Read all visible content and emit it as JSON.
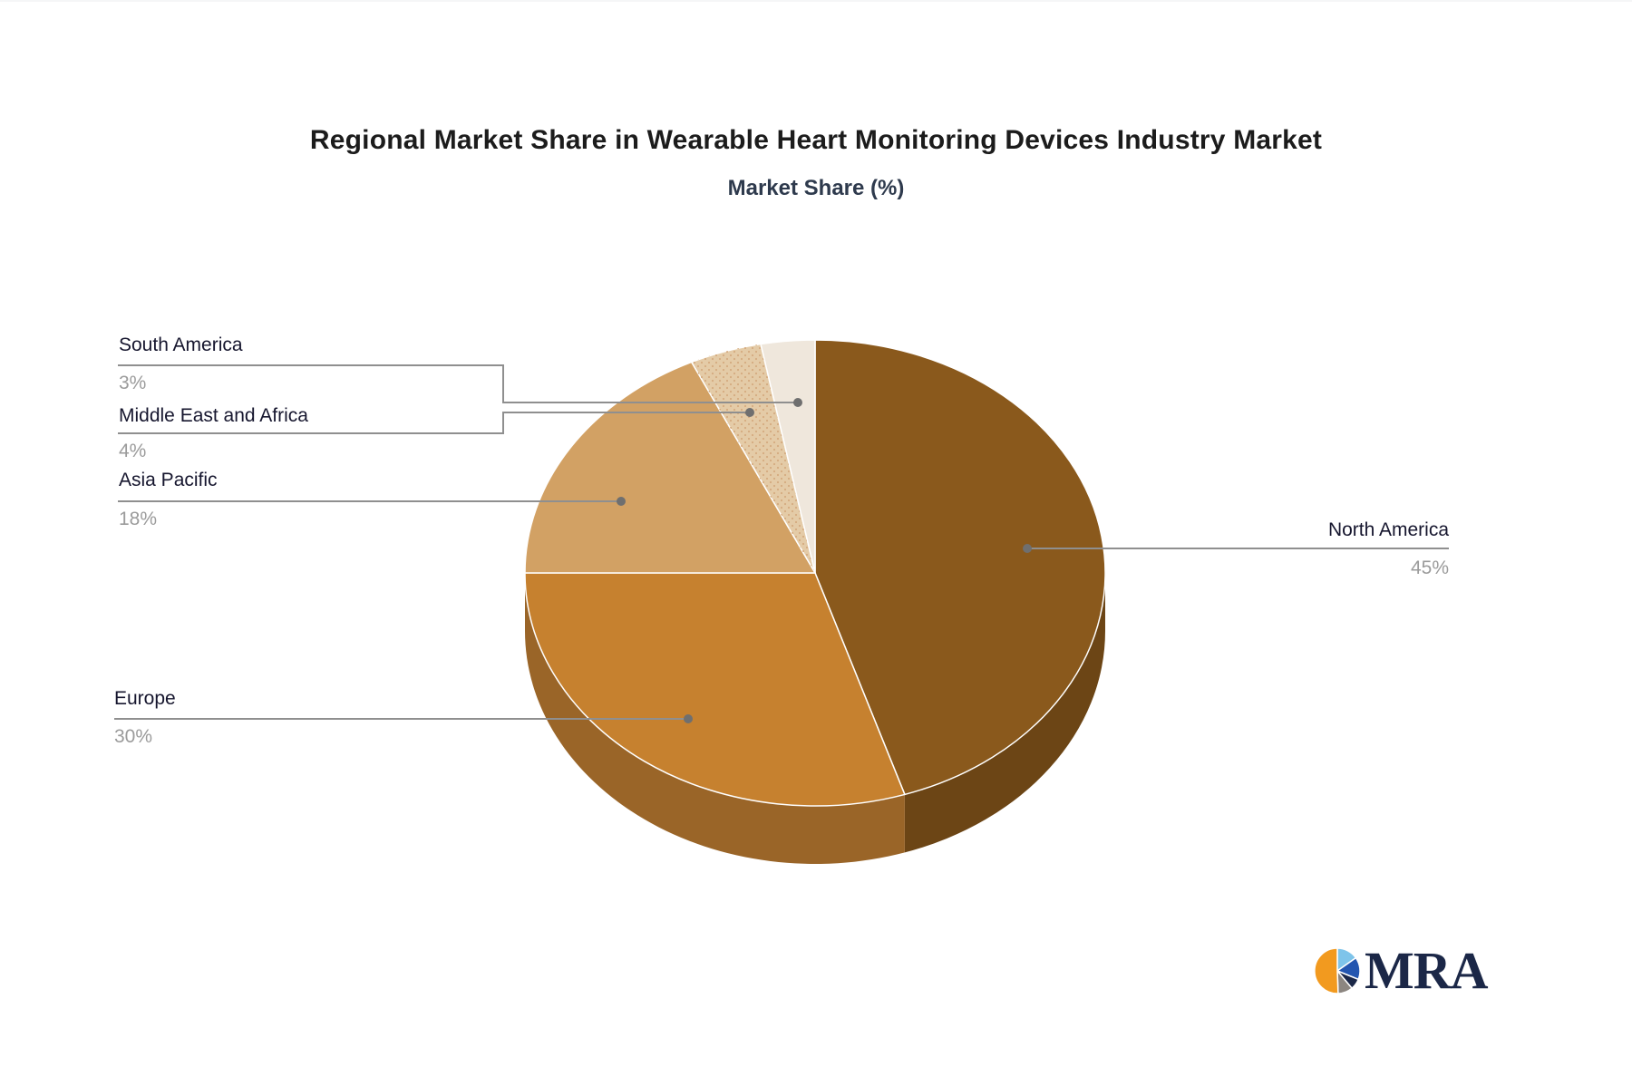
{
  "chart": {
    "title": "Regional Market Share in Wearable Heart Monitoring Devices Industry Market",
    "subtitle": "Market Share (%)"
  },
  "chart_data": {
    "type": "pie",
    "style": "3d",
    "title": "Regional Market Share in Wearable Heart Monitoring Devices Industry Market",
    "subtitle": "Market Share (%)",
    "unit": "%",
    "start_angle_deg": 0,
    "direction": "clockwise",
    "slices": [
      {
        "name": "North America",
        "value": 45,
        "label": "45%",
        "color": "#8a591c",
        "side_color": "#6c4515"
      },
      {
        "name": "Europe",
        "value": 30,
        "label": "30%",
        "color": "#c6812f",
        "side_color": "#9a6528"
      },
      {
        "name": "Asia Pacific",
        "value": 18,
        "label": "18%",
        "color": "#d2a164"
      },
      {
        "name": "Middle East and Africa",
        "value": 4,
        "label": "4%",
        "color": "#e4cba7",
        "pattern": "dots",
        "pattern_dot_color": "#d5ab80"
      },
      {
        "name": "South America",
        "value": 3,
        "label": "3%",
        "color": "#efe7dc"
      }
    ],
    "label_text_color": "#16162e",
    "label_value_color": "#9b9b9b",
    "callout_line_color": "#8f8f8f"
  },
  "branding": {
    "logo_text": "MRA",
    "logo_colors": {
      "orange": "#f29a1f",
      "light_blue": "#7ec4ea",
      "blue": "#2456b0",
      "navy": "#1b2747",
      "gray": "#8c8680",
      "text": "#1b2747"
    }
  }
}
